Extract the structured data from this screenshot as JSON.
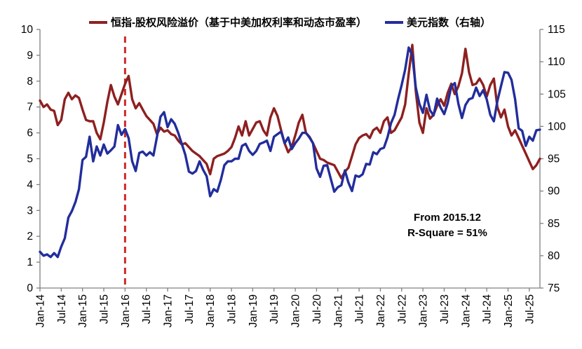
{
  "page": {
    "background": "#ffffff"
  },
  "legend": {
    "items": [
      {
        "id": "erp",
        "label": "恒指-股权风险溢价（基于中美加权利率和动态市盈率）",
        "color": "#8e2020"
      },
      {
        "id": "dxy",
        "label": "美元指数（右轴）",
        "color": "#222d9c"
      }
    ]
  },
  "annotation": {
    "line1": "From 2015.12",
    "line2": "R-Square = 51%"
  },
  "chart_data": {
    "type": "line",
    "title": "",
    "x_unit": "month",
    "x_start": "2014-01",
    "x_end": "2025-10",
    "months_total": 142,
    "x_tick_labels": [
      "Jan-14",
      "Jul-14",
      "Jan-15",
      "Jul-15",
      "Jan-16",
      "Jul-16",
      "Jan-17",
      "Jul-17",
      "Jan-18",
      "Jul-18",
      "Jan-19",
      "Jul-19",
      "Jan-20",
      "Jul-20",
      "Jan-21",
      "Jul-21",
      "Jan-22",
      "Jul-22",
      "Jan-23",
      "Jul-23",
      "Jan-24",
      "Jul-24",
      "Jan-25",
      "Jul-25"
    ],
    "x_tick_month_step": 6,
    "left_axis": {
      "min": 0,
      "max": 10,
      "tick_step": 1,
      "ticks": [
        0,
        1,
        2,
        3,
        4,
        5,
        6,
        7,
        8,
        9,
        10
      ]
    },
    "right_axis": {
      "min": 75,
      "max": 115,
      "tick_step": 5,
      "ticks": [
        75,
        80,
        85,
        90,
        95,
        100,
        105,
        110,
        115
      ]
    },
    "grid": false,
    "legend_position": "top",
    "vline": {
      "month_index": 24,
      "date": "2016-01",
      "color": "#cc2a2a",
      "style": "dashed"
    },
    "series": [
      {
        "name": "恒指-股权风险溢价（基于中美加权利率和动态市盈率）",
        "axis": "left",
        "color": "#8e2020",
        "values": [
          7.25,
          7.0,
          7.1,
          6.9,
          6.85,
          6.3,
          6.5,
          7.3,
          7.55,
          7.3,
          7.45,
          7.35,
          6.9,
          6.5,
          6.45,
          6.45,
          6.0,
          5.75,
          6.4,
          7.2,
          7.85,
          7.4,
          7.1,
          7.5,
          7.9,
          8.2,
          7.3,
          6.95,
          7.15,
          6.9,
          6.65,
          6.5,
          6.35,
          5.95,
          6.2,
          6.05,
          6.1,
          5.95,
          5.9,
          5.7,
          5.55,
          5.6,
          5.45,
          5.3,
          5.2,
          5.1,
          4.95,
          4.8,
          4.4,
          5.0,
          5.1,
          5.15,
          5.2,
          5.3,
          5.45,
          5.8,
          6.25,
          5.9,
          6.45,
          5.9,
          6.15,
          6.4,
          6.45,
          6.1,
          5.9,
          6.6,
          6.95,
          6.65,
          6.1,
          5.6,
          5.25,
          5.45,
          5.9,
          6.4,
          6.7,
          6.0,
          5.85,
          5.6,
          5.3,
          5.0,
          4.95,
          4.85,
          4.8,
          4.75,
          4.5,
          4.25,
          4.5,
          4.65,
          5.1,
          5.55,
          5.8,
          5.9,
          5.95,
          5.8,
          6.1,
          6.2,
          6.0,
          6.45,
          6.6,
          6.0,
          6.1,
          6.35,
          6.6,
          7.1,
          8.3,
          9.4,
          7.6,
          6.4,
          6.0,
          6.95,
          6.55,
          6.7,
          7.05,
          7.3,
          7.05,
          7.55,
          7.9,
          7.5,
          7.8,
          8.3,
          9.25,
          8.35,
          7.85,
          7.9,
          8.1,
          7.85,
          7.4,
          7.85,
          8.1,
          7.0,
          6.6,
          6.9,
          6.25,
          5.9,
          6.1,
          5.8,
          5.5,
          5.2,
          4.9,
          4.6,
          4.75,
          5.0
        ]
      },
      {
        "name": "美元指数（右轴）",
        "axis": "right",
        "color": "#222d9c",
        "values": [
          80.6,
          80.0,
          80.2,
          79.8,
          80.4,
          79.8,
          81.4,
          82.7,
          85.9,
          86.9,
          88.3,
          90.3,
          94.8,
          95.3,
          98.4,
          94.6,
          96.9,
          95.5,
          97.2,
          95.8,
          96.3,
          96.9,
          100.2,
          98.7,
          99.6,
          98.2,
          94.6,
          93.1,
          95.9,
          96.1,
          95.5,
          96.0,
          95.5,
          98.4,
          101.5,
          102.2,
          99.9,
          101.1,
          100.4,
          99.0,
          97.3,
          95.6,
          93.0,
          92.7,
          93.1,
          94.6,
          93.3,
          92.3,
          89.2,
          90.3,
          89.9,
          91.7,
          94.0,
          94.6,
          94.6,
          95.0,
          95.0,
          97.0,
          97.3,
          96.2,
          95.6,
          96.2,
          97.3,
          97.5,
          97.8,
          96.2,
          98.4,
          98.8,
          99.2,
          97.4,
          98.3,
          96.5,
          97.4,
          98.1,
          99.0,
          99.0,
          98.3,
          97.4,
          93.5,
          92.2,
          93.9,
          94.0,
          91.9,
          89.9,
          90.6,
          90.9,
          93.2,
          91.3,
          90.0,
          92.4,
          92.2,
          92.6,
          94.2,
          94.1,
          96.0,
          95.7,
          96.5,
          96.7,
          98.3,
          100.5,
          101.8,
          104.2,
          106.4,
          108.8,
          112.2,
          111.0,
          106.0,
          103.5,
          102.1,
          104.9,
          102.5,
          101.7,
          104.3,
          102.9,
          101.9,
          103.6,
          106.2,
          106.7,
          103.5,
          101.3,
          103.3,
          104.2,
          104.4,
          106.0,
          104.7,
          105.6,
          104.2,
          101.8,
          100.8,
          103.9,
          106.2,
          108.4,
          108.3,
          107.2,
          104.2,
          99.7,
          99.3,
          97.0,
          98.4,
          97.8,
          99.4,
          99.5
        ]
      }
    ]
  }
}
